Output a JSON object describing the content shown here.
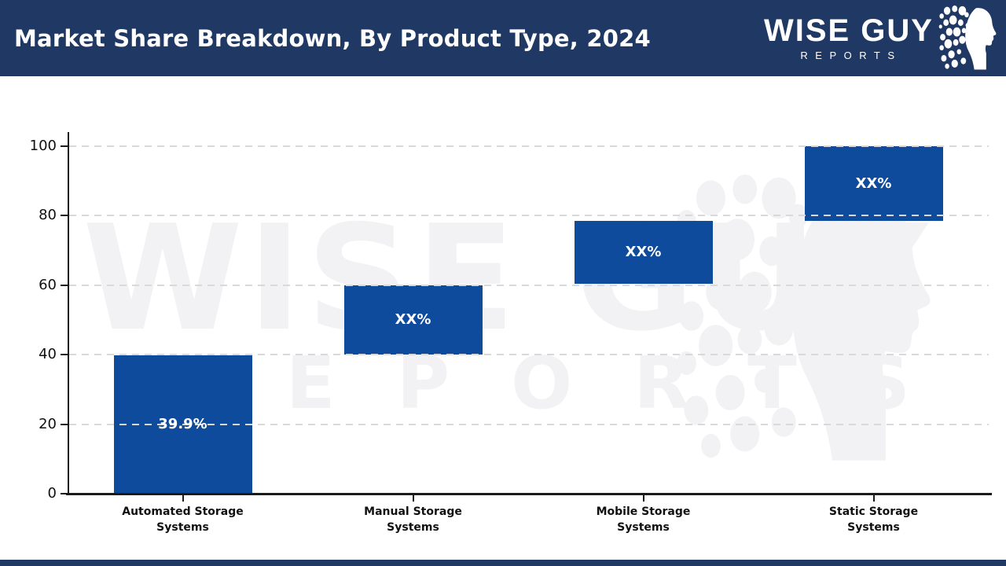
{
  "header": {
    "title": "Market Share Breakdown, By Product Type, 2024",
    "logo": {
      "line1": "WISE GUY",
      "line2": "REPORTS"
    }
  },
  "watermark": {
    "line1": "WISE GUY",
    "line2": "REPORTS"
  },
  "colors": {
    "header_bg": "#1f3864",
    "bar_color": "#0f4b9d",
    "grid_color": "#d9d9d9",
    "axis_color": "#1a1a1a",
    "watermark_color": "#f2f2f4",
    "bar_label_color": "#ffffff",
    "title_color": "#ffffff",
    "tick_label_color": "#111111"
  },
  "chart_data": {
    "type": "bar",
    "subtype": "waterfall",
    "title": "Market Share Breakdown, By Product Type, 2024",
    "categories": [
      "Automated Storage\nSystems",
      "Manual Storage\nSystems",
      "Mobile Storage\nSystems",
      "Static Storage\nSystems"
    ],
    "segments": [
      {
        "category": "Automated Storage Systems",
        "from": 0,
        "to": 39.9,
        "label": "39.9%"
      },
      {
        "category": "Manual Storage Systems",
        "from": 40,
        "to": 60,
        "label": "XX%"
      },
      {
        "category": "Mobile Storage Systems",
        "from": 60.5,
        "to": 78.5,
        "label": "XX%"
      },
      {
        "category": "Static Storage Systems",
        "from": 78.5,
        "to": 100,
        "label": "XX%"
      }
    ],
    "yticks": [
      0,
      20,
      40,
      60,
      80,
      100
    ],
    "ylim": [
      0,
      105
    ],
    "xlabel": "",
    "ylabel": "",
    "grid": true,
    "legend": false
  }
}
